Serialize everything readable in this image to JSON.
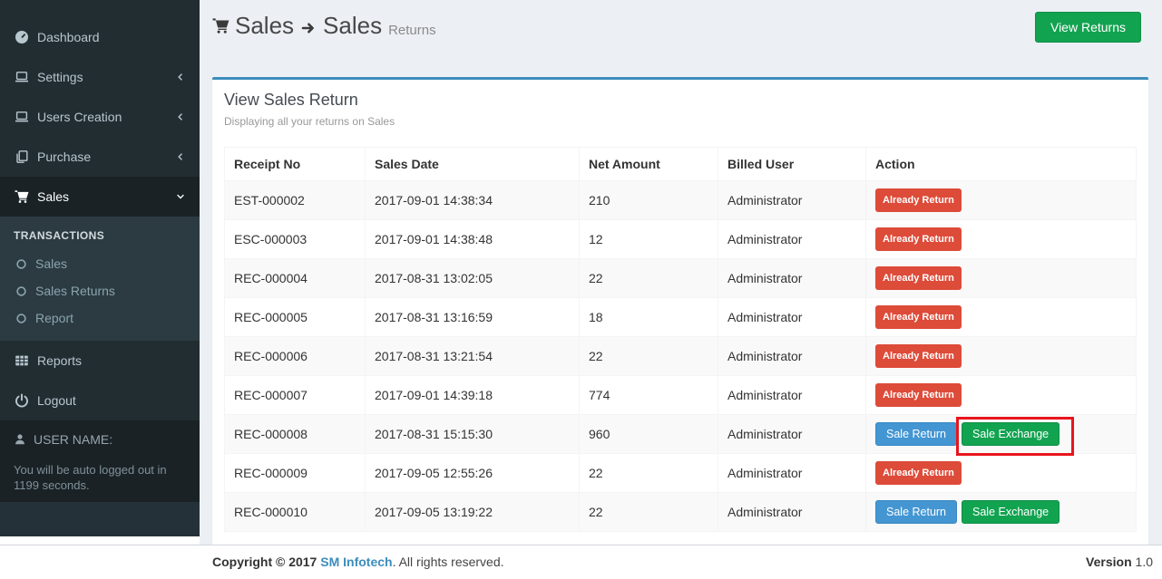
{
  "colors": {
    "topbar_blue": "#3c8dbc",
    "panel_accent_blue": "#3c8dbc",
    "button_green": "#12a350",
    "button_blue": "#4496d3",
    "badge_red": "#dd4b39",
    "highlight_red": "#e8151d",
    "sidebar_bg": "#222d32",
    "sidebar_submenu_bg": "#2c3b41",
    "content_bg": "#ecf0f5"
  },
  "sidebar": {
    "menu": [
      {
        "label": "Dashboard"
      },
      {
        "label": "Settings"
      },
      {
        "label": "Users Creation"
      },
      {
        "label": "Purchase"
      },
      {
        "label": "Sales"
      }
    ],
    "submenu_header": "TRANSACTIONS",
    "submenu": [
      {
        "label": "Sales"
      },
      {
        "label": "Sales Returns"
      },
      {
        "label": "Report"
      }
    ],
    "menu_bottom": [
      {
        "label": "Reports"
      },
      {
        "label": "Logout"
      }
    ],
    "user_label": "USER NAME:",
    "auto_logout_text": "You will be auto logged out in 1199 seconds."
  },
  "header": {
    "breadcrumb_parent": "Sales",
    "title": "Sales",
    "title_small": "Returns",
    "view_returns_button": "View Returns"
  },
  "panel": {
    "title": "View Sales Return",
    "subtitle": "Displaying all your returns on Sales"
  },
  "table": {
    "columns": [
      "Receipt No",
      "Sales Date",
      "Net Amount",
      "Billed User",
      "Action"
    ],
    "action_labels": {
      "already_return": "Already Return",
      "sale_return": "Sale Return",
      "sale_exchange": "Sale Exchange"
    },
    "rows": [
      {
        "receipt_no": "EST-000002",
        "sales_date": "2017-09-01 14:38:34",
        "net_amount": "210",
        "billed_user": "Administrator",
        "action": "already_return",
        "highlight": false
      },
      {
        "receipt_no": "ESC-000003",
        "sales_date": "2017-09-01 14:38:48",
        "net_amount": "12",
        "billed_user": "Administrator",
        "action": "already_return",
        "highlight": false
      },
      {
        "receipt_no": "REC-000004",
        "sales_date": "2017-08-31 13:02:05",
        "net_amount": "22",
        "billed_user": "Administrator",
        "action": "already_return",
        "highlight": false
      },
      {
        "receipt_no": "REC-000005",
        "sales_date": "2017-08-31 13:16:59",
        "net_amount": "18",
        "billed_user": "Administrator",
        "action": "already_return",
        "highlight": false
      },
      {
        "receipt_no": "REC-000006",
        "sales_date": "2017-08-31 13:21:54",
        "net_amount": "22",
        "billed_user": "Administrator",
        "action": "already_return",
        "highlight": false
      },
      {
        "receipt_no": "REC-000007",
        "sales_date": "2017-09-01 14:39:18",
        "net_amount": "774",
        "billed_user": "Administrator",
        "action": "already_return",
        "highlight": false
      },
      {
        "receipt_no": "REC-000008",
        "sales_date": "2017-08-31 15:15:30",
        "net_amount": "960",
        "billed_user": "Administrator",
        "action": "return_exchange",
        "highlight": true
      },
      {
        "receipt_no": "REC-000009",
        "sales_date": "2017-09-05 12:55:26",
        "net_amount": "22",
        "billed_user": "Administrator",
        "action": "already_return",
        "highlight": false
      },
      {
        "receipt_no": "REC-000010",
        "sales_date": "2017-09-05 13:19:22",
        "net_amount": "22",
        "billed_user": "Administrator",
        "action": "return_exchange",
        "highlight": false
      }
    ]
  },
  "footer": {
    "copyright_prefix": "Copyright © 2017",
    "company": "SM Infotech",
    "copyright_suffix": ". All rights reserved.",
    "version_label": "Version",
    "version_value": "1.0"
  }
}
